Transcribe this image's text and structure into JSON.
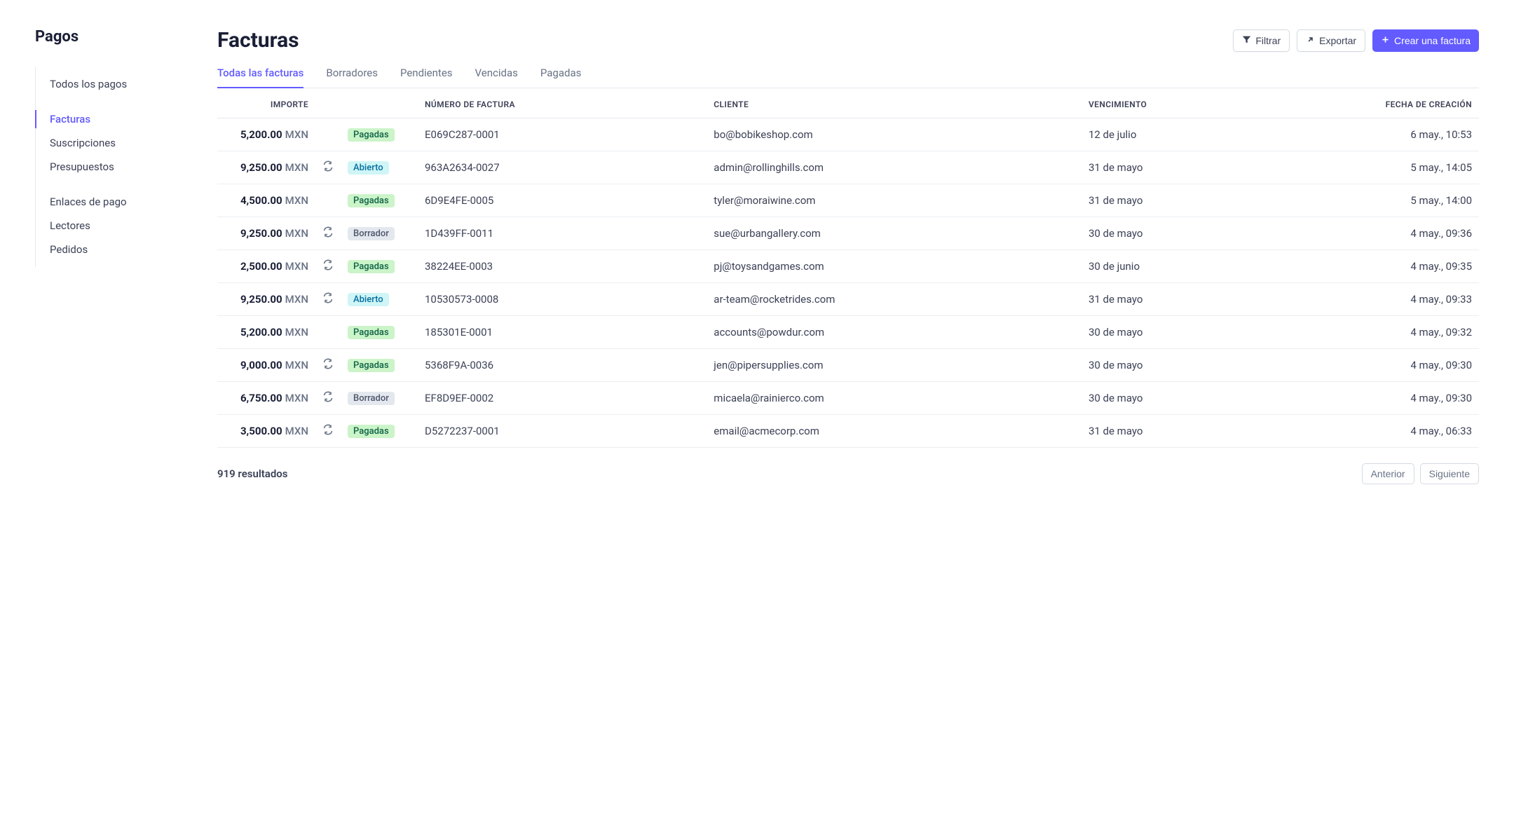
{
  "sidebar": {
    "title": "Pagos",
    "groups": [
      {
        "items": [
          {
            "label": "Todos los pagos",
            "active": false
          }
        ]
      },
      {
        "items": [
          {
            "label": "Facturas",
            "active": true
          },
          {
            "label": "Suscripciones",
            "active": false
          },
          {
            "label": "Presupuestos",
            "active": false
          }
        ]
      },
      {
        "items": [
          {
            "label": "Enlaces de pago",
            "active": false
          },
          {
            "label": "Lectores",
            "active": false
          },
          {
            "label": "Pedidos",
            "active": false
          }
        ]
      }
    ]
  },
  "header": {
    "title": "Facturas",
    "buttons": {
      "filter": "Filtrar",
      "export": "Exportar",
      "create": "Crear una factura"
    }
  },
  "tabs": [
    {
      "label": "Todas las facturas",
      "active": true
    },
    {
      "label": "Borradores",
      "active": false
    },
    {
      "label": "Pendientes",
      "active": false
    },
    {
      "label": "Vencidas",
      "active": false
    },
    {
      "label": "Pagadas",
      "active": false
    }
  ],
  "table": {
    "columns": {
      "amount": "IMPORTE",
      "invoice_number": "NÚMERO DE FACTURA",
      "client": "CLIENTE",
      "due": "VENCIMIENTO",
      "created": "FECHA DE CREACIÓN"
    },
    "status_labels": {
      "paid": "Pagadas",
      "open": "Abierto",
      "draft": "Borrador"
    },
    "status_styles": {
      "paid": {
        "bg": "#cbf4c9",
        "fg": "#0e6245"
      },
      "open": {
        "bg": "#cff5f6",
        "fg": "#0570a1"
      },
      "draft": {
        "bg": "#e3e8ee",
        "fg": "#4f566b"
      }
    },
    "currency": "MXN",
    "rows": [
      {
        "amount": "5,200.00",
        "recurring": false,
        "status": "paid",
        "number": "E069C287-0001",
        "client": "bo@bobikeshop.com",
        "due": "12 de julio",
        "created": "6 may., 10:53"
      },
      {
        "amount": "9,250.00",
        "recurring": true,
        "status": "open",
        "number": "963A2634-0027",
        "client": "admin@rollinghills.com",
        "due": "31 de mayo",
        "created": "5 may., 14:05"
      },
      {
        "amount": "4,500.00",
        "recurring": false,
        "status": "paid",
        "number": "6D9E4FE-0005",
        "client": "tyler@moraiwine.com",
        "due": "31 de mayo",
        "created": "5 may., 14:00"
      },
      {
        "amount": "9,250.00",
        "recurring": true,
        "status": "draft",
        "number": "1D439FF-0011",
        "client": "sue@urbangallery.com",
        "due": "30 de mayo",
        "created": "4 may., 09:36"
      },
      {
        "amount": "2,500.00",
        "recurring": true,
        "status": "paid",
        "number": "38224EE-0003",
        "client": "pj@toysandgames.com",
        "due": "30 de junio",
        "created": "4 may., 09:35"
      },
      {
        "amount": "9,250.00",
        "recurring": true,
        "status": "open",
        "number": "10530573-0008",
        "client": "ar-team@rocketrides.com",
        "due": "31 de mayo",
        "created": "4 may., 09:33"
      },
      {
        "amount": "5,200.00",
        "recurring": false,
        "status": "paid",
        "number": "185301E-0001",
        "client": "accounts@powdur.com",
        "due": "30 de mayo",
        "created": "4 may., 09:32"
      },
      {
        "amount": "9,000.00",
        "recurring": true,
        "status": "paid",
        "number": "5368F9A-0036",
        "client": "jen@pipersupplies.com",
        "due": "30 de mayo",
        "created": "4 may., 09:30"
      },
      {
        "amount": "6,750.00",
        "recurring": true,
        "status": "draft",
        "number": "EF8D9EF-0002",
        "client": "micaela@rainierco.com",
        "due": "30 de mayo",
        "created": "4 may., 09:30"
      },
      {
        "amount": "3,500.00",
        "recurring": true,
        "status": "paid",
        "number": "D5272237-0001",
        "client": "email@acmecorp.com",
        "due": "31 de mayo",
        "created": "4 may., 06:33"
      }
    ]
  },
  "footer": {
    "results": "919 resultados",
    "prev": "Anterior",
    "next": "Siguiente"
  },
  "colors": {
    "accent": "#635bff",
    "text": "#1a1f36",
    "text_muted": "#697386",
    "border": "#e3e8ee"
  }
}
